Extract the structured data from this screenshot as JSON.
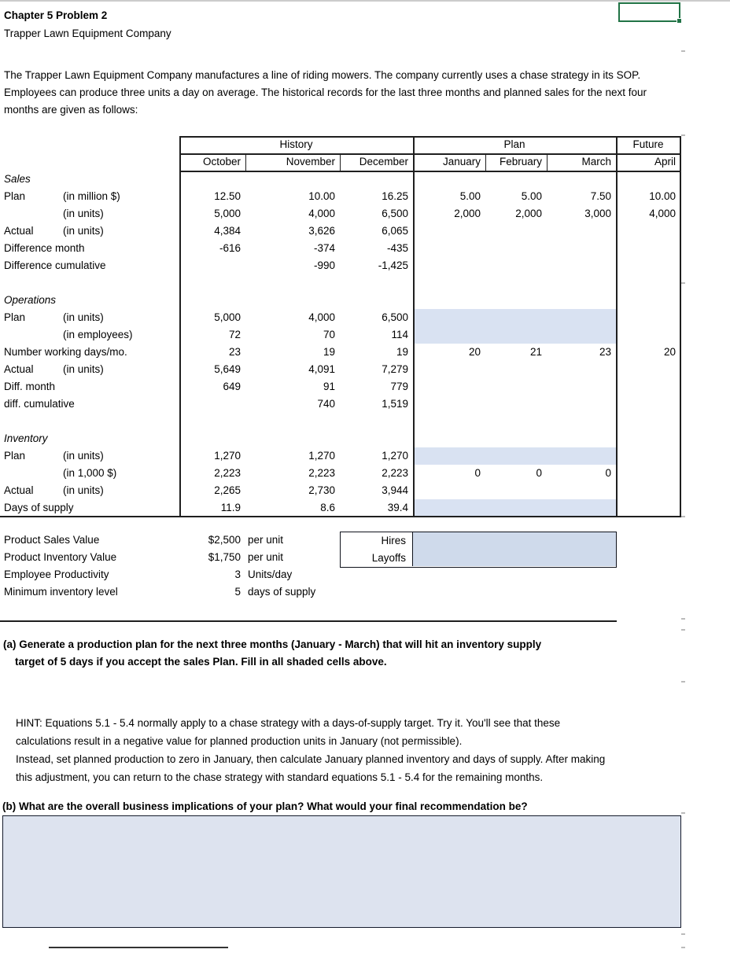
{
  "page": {
    "title": "Chapter 5 Problem 2",
    "subtitle": "Trapper Lawn Equipment Company",
    "intro": "The Trapper Lawn Equipment Company manufactures a line of riding mowers. The company currently uses a chase strategy in its SOP. Employees can produce three units a day on average. The historical records for the last three months and planned sales for the next four months are given as follows:"
  },
  "colors": {
    "shaded_cell": "#d9e2f2",
    "staff_shade": "#cfdaeb",
    "answer_box_fill": "#dde3ef",
    "selection_green": "#217346"
  },
  "table": {
    "group_headers": [
      "History",
      "Plan",
      "Future"
    ],
    "month_headers": [
      "October",
      "November",
      "December",
      "January",
      "February",
      "March",
      "April"
    ],
    "rows": [
      {
        "type": "section",
        "label": "Sales"
      },
      {
        "type": "data",
        "label": "Plan",
        "sublabel": "(in million $)",
        "values": [
          "12.50",
          "10.00",
          "16.25",
          "5.00",
          "5.00",
          "7.50",
          "10.00"
        ],
        "shaded": []
      },
      {
        "type": "data",
        "label": "",
        "sublabel": "(in units)",
        "values": [
          "5,000",
          "4,000",
          "6,500",
          "2,000",
          "2,000",
          "3,000",
          "4,000"
        ],
        "shaded": []
      },
      {
        "type": "data",
        "label": "Actual",
        "sublabel": "(in units)",
        "values": [
          "4,384",
          "3,626",
          "6,065",
          "",
          "",
          "",
          ""
        ],
        "shaded": []
      },
      {
        "type": "data",
        "label": "Difference month",
        "sublabel": "",
        "values": [
          "-616",
          "-374",
          "-435",
          "",
          "",
          "",
          ""
        ],
        "shaded": []
      },
      {
        "type": "data",
        "label": "Difference cumulative",
        "sublabel": "",
        "values": [
          "",
          "-990",
          "-1,425",
          "",
          "",
          "",
          ""
        ],
        "shaded": []
      },
      {
        "type": "blank"
      },
      {
        "type": "section",
        "label": "Operations"
      },
      {
        "type": "data",
        "label": "Plan",
        "sublabel": "(in units)",
        "values": [
          "5,000",
          "4,000",
          "6,500",
          "",
          "",
          "",
          ""
        ],
        "shaded": [
          3,
          4,
          5
        ]
      },
      {
        "type": "data",
        "label": "",
        "sublabel": "(in employees)",
        "values": [
          "72",
          "70",
          "114",
          "",
          "",
          "",
          ""
        ],
        "shaded": [
          3,
          4,
          5
        ]
      },
      {
        "type": "data",
        "label": "Number working days/mo.",
        "sublabel": "",
        "values": [
          "23",
          "19",
          "19",
          "20",
          "21",
          "23",
          "20"
        ],
        "shaded": []
      },
      {
        "type": "data",
        "label": "Actual",
        "sublabel": "(in units)",
        "values": [
          "5,649",
          "4,091",
          "7,279",
          "",
          "",
          "",
          ""
        ],
        "shaded": []
      },
      {
        "type": "data",
        "label": "Diff. month",
        "sublabel": "",
        "values": [
          "649",
          "91",
          "779",
          "",
          "",
          "",
          ""
        ],
        "shaded": []
      },
      {
        "type": "data",
        "label": "diff. cumulative",
        "sublabel": "",
        "values": [
          "",
          "740",
          "1,519",
          "",
          "",
          "",
          ""
        ],
        "shaded": []
      },
      {
        "type": "blank"
      },
      {
        "type": "section",
        "label": "Inventory"
      },
      {
        "type": "data",
        "label": "Plan",
        "sublabel": "(in units)",
        "values": [
          "1,270",
          "1,270",
          "1,270",
          "",
          "",
          "",
          ""
        ],
        "shaded": [
          3,
          4,
          5
        ]
      },
      {
        "type": "data",
        "label": "",
        "sublabel": "(in 1,000 $)",
        "values": [
          "2,223",
          "2,223",
          "2,223",
          "0",
          "0",
          "0",
          ""
        ],
        "shaded": []
      },
      {
        "type": "data",
        "label": "Actual",
        "sublabel": "(in units)",
        "values": [
          "2,265",
          "2,730",
          "3,944",
          "",
          "",
          "",
          ""
        ],
        "shaded": []
      },
      {
        "type": "data",
        "label": "Days of supply",
        "sublabel": "",
        "values": [
          "11.9",
          "8.6",
          "39.4",
          "",
          "",
          "",
          ""
        ],
        "shaded": [
          3,
          4,
          5
        ]
      }
    ]
  },
  "parameters": [
    {
      "label": "Product Sales Value",
      "value": "$2,500",
      "unit": "per unit"
    },
    {
      "label": "Product Inventory Value",
      "value": "$1,750",
      "unit": "per unit"
    },
    {
      "label": "Employee Productivity",
      "value": "3",
      "unit": "Units/day"
    },
    {
      "label": "Minimum inventory level",
      "value": "5",
      "unit": "days of supply"
    }
  ],
  "staffing_box": {
    "rows": [
      "Hires",
      "Layoffs"
    ]
  },
  "question_a": {
    "line1": "(a) Generate a production plan for the next three months (January - March) that will hit an inventory supply",
    "line2": "target of 5 days if you accept the sales Plan. Fill in all shaded cells above."
  },
  "hint_lines": [
    "HINT: Equations 5.1 - 5.4 normally apply to a chase strategy with a days-of-supply target. Try it. You'll see that these",
    "calculations result in a negative value for planned production units in January (not permissible).",
    "Instead, set planned production to zero in January, then calculate January planned inventory and days of supply. After making",
    "this adjustment, you can return to the chase strategy with standard equations 5.1 - 5.4 for the remaining months."
  ],
  "question_b": "(b) What are the overall business implications of your plan? What would your final recommendation be?"
}
